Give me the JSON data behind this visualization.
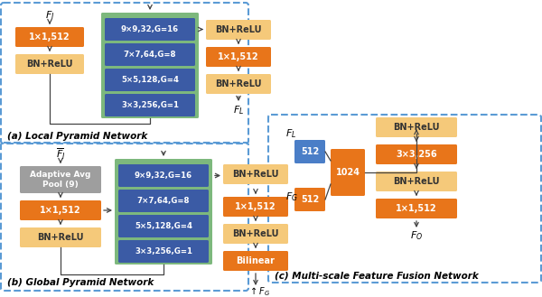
{
  "colors": {
    "orange_dark": "#E8751A",
    "orange_light": "#F5C97A",
    "blue_dark": "#3B5BA5",
    "green_bg": "#7DB87D",
    "gray_box": "#9E9E9E",
    "blue_mid": "#4A7EC7",
    "dashed_color": "#5B9BD5",
    "text_white": "#FFFFFF",
    "text_dark": "#333333",
    "arrow_color": "#444444",
    "bg": "#FFFFFF"
  },
  "panel_a": {
    "title": "(a) Local Pyramid Network",
    "fi_label": "$F_I$",
    "fl_label": "$F_L$",
    "box1": "1×1,512",
    "box2": "BN+ReLU",
    "pyramid_rows": [
      "9×9,32,G=16",
      "7×7,64,G=8",
      "5×5,128,G=4",
      "3×3,256,G=1"
    ],
    "out1": "BN+ReLU",
    "out2": "1×1,512",
    "out3": "BN+ReLU"
  },
  "panel_b": {
    "title": "(b) Global Pyramid Network",
    "fi_label": "$\\bar{F}_I$",
    "fg_label": "$F_G$",
    "pool": "Adaptive Avg\nPool (9)",
    "box1": "1×1,512",
    "box2": "BN+ReLU",
    "pyramid_rows": [
      "9×9,32,G=16",
      "7×7,64,G=8",
      "5×5,128,G=4",
      "3×3,256,G=1"
    ],
    "out1": "BN+ReLU",
    "out2": "1×1,512",
    "out3": "BN+ReLU",
    "out4": "Bilinear"
  },
  "panel_c": {
    "title": "(c) Multi-scale Feature Fusion Network",
    "fl_label": "$F_L$",
    "fg_label": "$F_G$",
    "fo_label": "$F_O$",
    "box512a": "512",
    "box512b": "512",
    "box1024": "1024",
    "out1": "BN+ReLU",
    "out2": "3×3,256",
    "out3": "BN+ReLU",
    "out4": "1×1,512"
  }
}
